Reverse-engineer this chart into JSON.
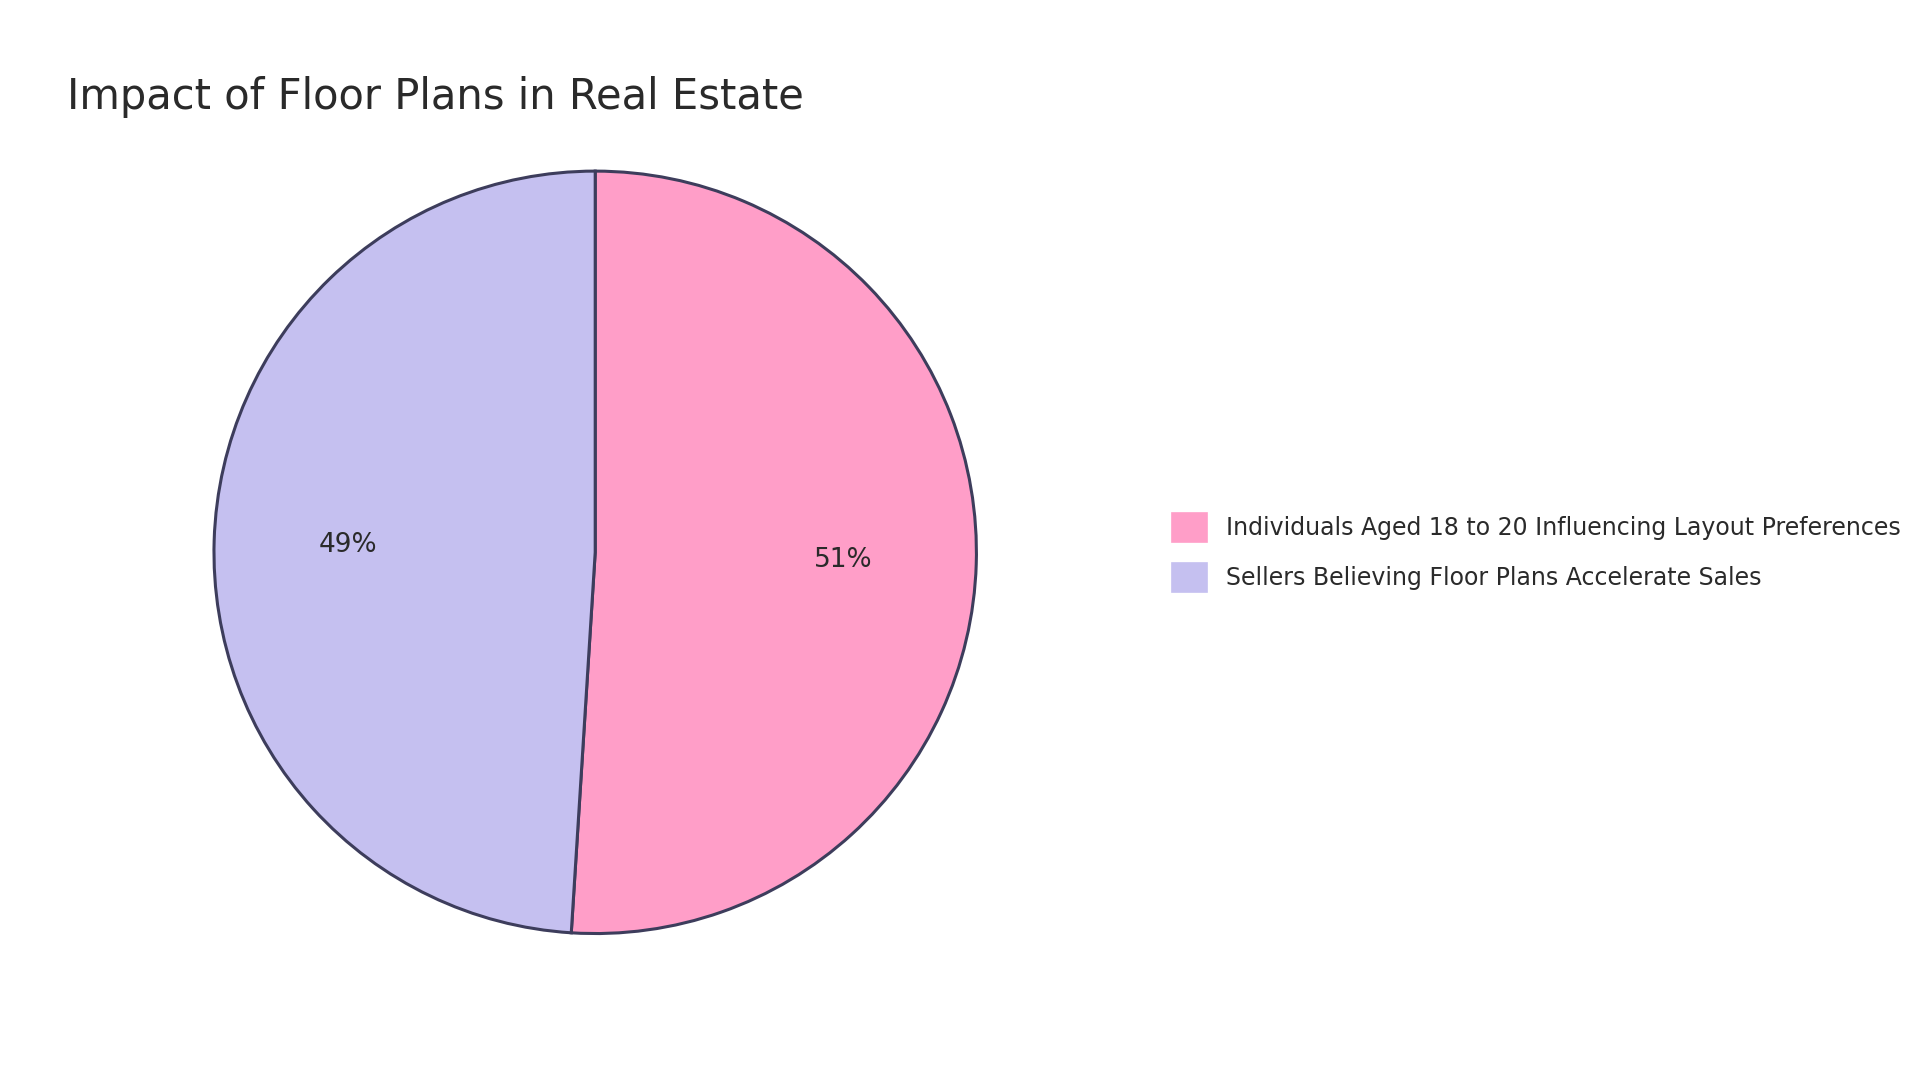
{
  "title": "Impact of Floor Plans in Real Estate",
  "slices": [
    51,
    49
  ],
  "colors": [
    "#FF9EC8",
    "#C5C0F0"
  ],
  "edge_color": "#3d3d5c",
  "labels": [
    "Individuals Aged 18 to 20 Influencing Layout Preferences",
    "Sellers Believing Floor Plans Accelerate Sales"
  ],
  "title_fontsize": 30,
  "pct_fontsize": 19,
  "legend_fontsize": 17,
  "background_color": "#ffffff",
  "text_color": "#2a2a2a",
  "startangle": 90
}
